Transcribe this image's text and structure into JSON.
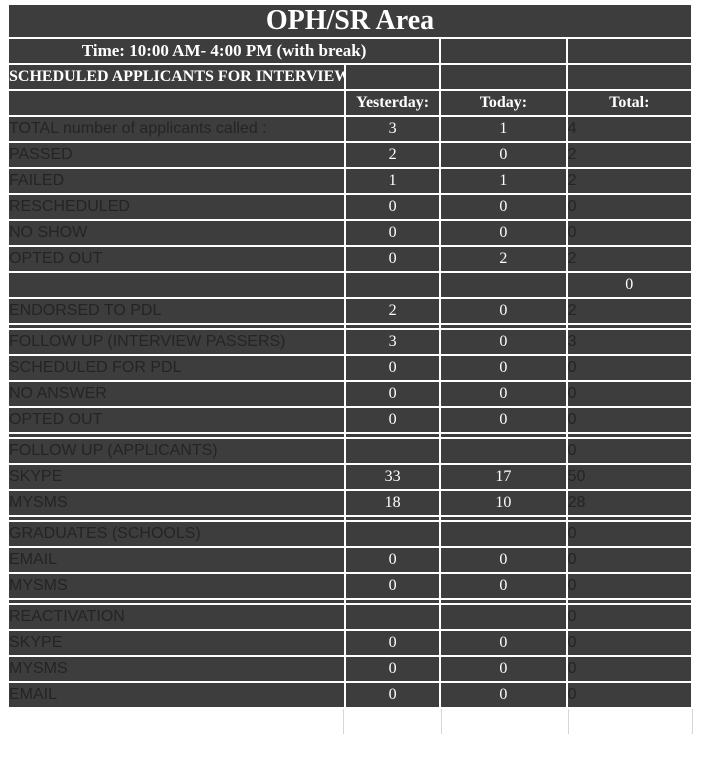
{
  "page": {
    "background": "#ffffff"
  },
  "sheet": {
    "title": "OPH/SR Area",
    "time_heading": "Time: 10:00 AM- 4:00 PM (with break)",
    "scheduled_heading": "SCHEDULED APPLICANTS FOR INTERVIEW:",
    "columns": {
      "yesterday": "Yesterday:",
      "today": "Today:",
      "total": "Total:"
    },
    "colors": {
      "cell_background": "#3d3d3d",
      "gridline": "#ffffff",
      "bright_text": "#ffffff",
      "dim_text": "#242424",
      "below_table_gridline": "#d6d6d6"
    },
    "rows": [
      {
        "type": "data",
        "label": "TOTAL number of applicants called :",
        "yesterday": "3",
        "today": "1",
        "total": "4",
        "total_style": "dim"
      },
      {
        "type": "data",
        "label": "PASSED",
        "yesterday": "2",
        "today": "0",
        "total": "2",
        "total_style": "dim"
      },
      {
        "type": "data",
        "label": "FAILED",
        "yesterday": "1",
        "today": "1",
        "total": "2",
        "total_style": "dim"
      },
      {
        "type": "data",
        "label": "RESCHEDULED",
        "yesterday": "0",
        "today": "0",
        "total": "0",
        "total_style": "dim"
      },
      {
        "type": "data",
        "label": "NO SHOW",
        "yesterday": "0",
        "today": "0",
        "total": "0",
        "total_style": "dim"
      },
      {
        "type": "data",
        "label": "OPTED OUT",
        "yesterday": "0",
        "today": "2",
        "total": "2",
        "total_style": "dim"
      },
      {
        "type": "data",
        "label": "",
        "yesterday": "",
        "today": "",
        "total": "0",
        "total_style": "bright"
      },
      {
        "type": "data",
        "label": "ENDORSED TO PDL",
        "yesterday": "2",
        "today": "0",
        "total": "2",
        "total_style": "dim"
      },
      {
        "type": "spacer"
      },
      {
        "type": "data",
        "label": "FOLLOW UP (INTERVIEW PASSERS)",
        "yesterday": "3",
        "today": "0",
        "total": "3",
        "total_style": "dim"
      },
      {
        "type": "data",
        "label": "SCHEDULED FOR PDL",
        "yesterday": "0",
        "today": "0",
        "total": "0",
        "total_style": "dim"
      },
      {
        "type": "data",
        "label": "NO ANSWER",
        "yesterday": "0",
        "today": "0",
        "total": "0",
        "total_style": "dim"
      },
      {
        "type": "data",
        "label": "OPTED OUT",
        "yesterday": "0",
        "today": "0",
        "total": "0",
        "total_style": "dim"
      },
      {
        "type": "spacer"
      },
      {
        "type": "data",
        "label": "FOLLOW UP (APPLICANTS)",
        "yesterday": "",
        "today": "",
        "total": "0",
        "total_style": "dim"
      },
      {
        "type": "data",
        "label": "SKYPE",
        "yesterday": "33",
        "today": "17",
        "total": "50",
        "total_style": "dim"
      },
      {
        "type": "data",
        "label": "MYSMS",
        "yesterday": "18",
        "today": "10",
        "total": "28",
        "total_style": "dim"
      },
      {
        "type": "spacer"
      },
      {
        "type": "data",
        "label": "GRADUATES (SCHOOLS)",
        "yesterday": "",
        "today": "",
        "total": "0",
        "total_style": "dim"
      },
      {
        "type": "data",
        "label": "EMAIL",
        "yesterday": "0",
        "today": "0",
        "total": "0",
        "total_style": "dim"
      },
      {
        "type": "data",
        "label": "MYSMS",
        "yesterday": "0",
        "today": "0",
        "total": "0",
        "total_style": "dim"
      },
      {
        "type": "spacer"
      },
      {
        "type": "data",
        "label": "REACTIVATION",
        "yesterday": "",
        "today": "",
        "total": "0",
        "total_style": "dim"
      },
      {
        "type": "data",
        "label": "SKYPE",
        "yesterday": "0",
        "today": "0",
        "total": "0",
        "total_style": "dim"
      },
      {
        "type": "data",
        "label": "MYSMS",
        "yesterday": "0",
        "today": "0",
        "total": "0",
        "total_style": "dim"
      },
      {
        "type": "data",
        "label": "EMAIL",
        "yesterday": "0",
        "today": "0",
        "total": "0",
        "total_style": "dim"
      }
    ]
  }
}
